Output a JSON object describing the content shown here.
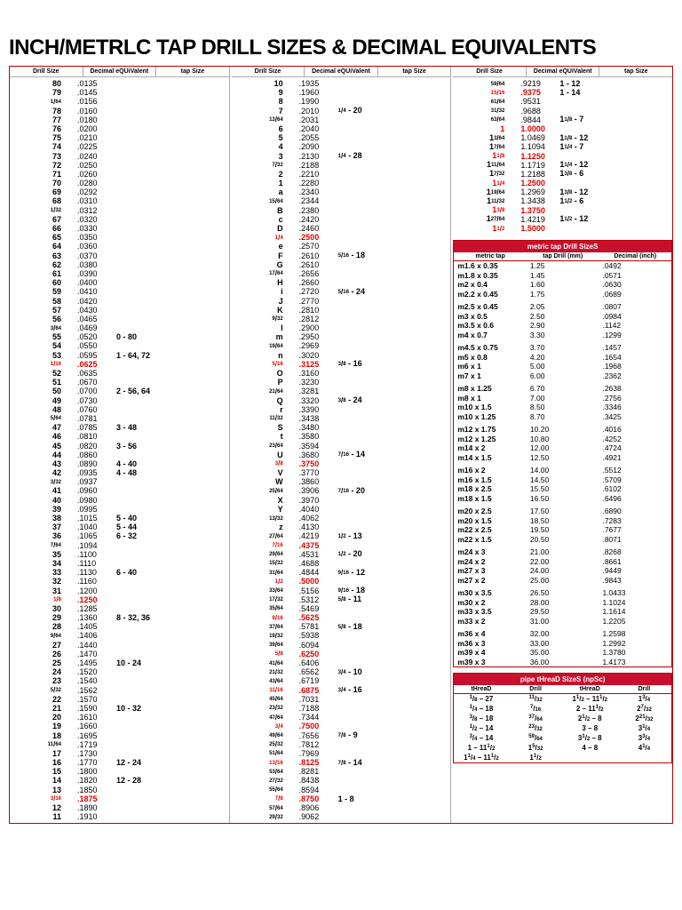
{
  "title": "INCH/METRLC TAP DRILL SIZES & DECIMAL EQUIVALENTS",
  "headers": [
    "Drill Size",
    "Decimal eQUiValent",
    "tap Size"
  ],
  "col1": [
    [
      "80",
      ".0135",
      ""
    ],
    [
      "79",
      ".0145",
      ""
    ],
    [
      "<f>1/64</f>",
      ".0156",
      ""
    ],
    [
      "78",
      ".0160",
      ""
    ],
    [
      "77",
      ".0180",
      ""
    ],
    [
      "76",
      ".0200",
      ""
    ],
    [
      "75",
      ".0210",
      ""
    ],
    [
      "74",
      ".0225",
      ""
    ],
    [
      "73",
      ".0240",
      ""
    ],
    [
      "72",
      ".0250",
      ""
    ],
    [
      "71",
      ".0260",
      ""
    ],
    [
      "70",
      ".0280",
      ""
    ],
    [
      "69",
      ".0292",
      ""
    ],
    [
      "68",
      ".0310",
      ""
    ],
    [
      "<f>1/32</f>",
      ".0312",
      ""
    ],
    [
      "67",
      ".0320",
      ""
    ],
    [
      "66",
      ".0330",
      ""
    ],
    [
      "65",
      ".0350",
      ""
    ],
    [
      "64",
      ".0360",
      ""
    ],
    [
      "63",
      ".0370",
      ""
    ],
    [
      "62",
      ".0380",
      ""
    ],
    [
      "61",
      ".0390",
      ""
    ],
    [
      "60",
      ".0400",
      ""
    ],
    [
      "59",
      ".0410",
      ""
    ],
    [
      "58",
      ".0420",
      ""
    ],
    [
      "57",
      ".0430",
      ""
    ],
    [
      "56",
      ".0465",
      ""
    ],
    [
      "<f>3/64</f>",
      ".0469",
      ""
    ],
    [
      "55",
      ".0520",
      "0 - 80"
    ],
    [
      "54",
      ".0550",
      ""
    ],
    [
      "53",
      ".0595",
      "1 - 64, 72"
    ],
    [
      "<r><f>1/16</f>",
      "<r>.0625",
      ""
    ],
    [
      "52",
      ".0635",
      ""
    ],
    [
      "51",
      ".0670",
      ""
    ],
    [
      "50",
      ".0700",
      "2 - 56, 64"
    ],
    [
      "49",
      ".0730",
      ""
    ],
    [
      "48",
      ".0760",
      ""
    ],
    [
      "<f>5/64</f>",
      ".0781",
      ""
    ],
    [
      "47",
      ".0785",
      "3 - 48"
    ],
    [
      "46",
      ".0810",
      ""
    ],
    [
      "45",
      ".0820",
      "3 - 56"
    ],
    [
      "44",
      ".0860",
      ""
    ],
    [
      "43",
      ".0890",
      "4 - 40"
    ],
    [
      "42",
      ".0935",
      "4 - 48"
    ],
    [
      "<f>3/32</f>",
      ".0937",
      ""
    ],
    [
      "41",
      ".0960",
      ""
    ],
    [
      "40",
      ".0980",
      ""
    ],
    [
      "39",
      ".0995",
      ""
    ],
    [
      "38",
      ".1015",
      "5 - 40"
    ],
    [
      "37",
      ".1040",
      "5 - 44"
    ],
    [
      "36",
      ".1065",
      "6 - 32"
    ],
    [
      "<f>7/64</f>",
      ".1094",
      ""
    ],
    [
      "35",
      ".1100",
      ""
    ],
    [
      "34",
      ".1110",
      ""
    ],
    [
      "33",
      ".1130",
      "6 - 40"
    ],
    [
      "32",
      ".1160",
      ""
    ],
    [
      "31",
      ".1200",
      ""
    ],
    [
      "<r><f>1/8</f>",
      "<r>.1250",
      ""
    ],
    [
      "30",
      ".1285",
      ""
    ],
    [
      "29",
      ".1360",
      "8 - 32, 36"
    ],
    [
      "28",
      ".1405",
      ""
    ],
    [
      "<f>9/64</f>",
      ".1406",
      ""
    ],
    [
      "27",
      ".1440",
      ""
    ],
    [
      "26",
      ".1470",
      ""
    ],
    [
      "25",
      ".1495",
      "10 - 24"
    ],
    [
      "24",
      ".1520",
      ""
    ],
    [
      "23",
      ".1540",
      ""
    ],
    [
      "<f>5/32</f>",
      ".1562",
      ""
    ],
    [
      "22",
      ".1570",
      ""
    ],
    [
      "21",
      ".1590",
      "10 - 32"
    ],
    [
      "20",
      ".1610",
      ""
    ],
    [
      "19",
      ".1660",
      ""
    ],
    [
      "18",
      ".1695",
      ""
    ],
    [
      "<f>11/64</f>",
      ".1719",
      ""
    ],
    [
      "17",
      ".1730",
      ""
    ],
    [
      "16",
      ".1770",
      "12 - 24"
    ],
    [
      "15",
      ".1800",
      ""
    ],
    [
      "14",
      ".1820",
      "12 - 28"
    ],
    [
      "13",
      ".1850",
      ""
    ],
    [
      "<r><f>3/16</f>",
      "<r>.1875",
      ""
    ],
    [
      "12",
      ".1890",
      ""
    ],
    [
      "11",
      ".1910",
      ""
    ]
  ],
  "col2": [
    [
      "10",
      ".1935",
      ""
    ],
    [
      "9",
      ".1960",
      ""
    ],
    [
      "8",
      ".1990",
      ""
    ],
    [
      "7",
      ".2010",
      "<f>1/4</f> - 20"
    ],
    [
      "<f>13/64</f>",
      ".2031",
      ""
    ],
    [
      "6",
      ".2040",
      ""
    ],
    [
      "5",
      ".2055",
      ""
    ],
    [
      "4",
      ".2090",
      ""
    ],
    [
      "3",
      ".2130",
      "<f>1/4</f> - 28"
    ],
    [
      "<f>7/32</f>",
      ".2188",
      ""
    ],
    [
      "2",
      ".2210",
      ""
    ],
    [
      "1",
      ".2280",
      ""
    ],
    [
      "a",
      ".2340",
      ""
    ],
    [
      "<f>15/64</f>",
      ".2344",
      ""
    ],
    [
      "B",
      ".2380",
      ""
    ],
    [
      "c",
      ".2420",
      ""
    ],
    [
      "D",
      ".2460",
      ""
    ],
    [
      "<r><f>1/4</f>",
      "<r>.2500",
      ""
    ],
    [
      "e",
      ".2570",
      ""
    ],
    [
      "F",
      ".2610",
      "<f>5/16</f> - 18"
    ],
    [
      "G",
      ".2610",
      ""
    ],
    [
      "<f>17/64</f>",
      ".2656",
      ""
    ],
    [
      "H",
      ".2660",
      ""
    ],
    [
      "i",
      ".2720",
      "<f>5/16</f> - 24"
    ],
    [
      "J",
      ".2770",
      ""
    ],
    [
      "K",
      ".2810",
      ""
    ],
    [
      "<f>9/32</f>",
      ".2812",
      ""
    ],
    [
      "l",
      ".2900",
      ""
    ],
    [
      "m",
      ".2950",
      ""
    ],
    [
      "<f>19/64</f>",
      ".2969",
      ""
    ],
    [
      "n",
      ".3020",
      ""
    ],
    [
      "<r><f>5/16</f>",
      "<r>.3125",
      "<f>3/8</f> - 16"
    ],
    [
      "O",
      ".3160",
      ""
    ],
    [
      "P",
      ".3230",
      ""
    ],
    [
      "<f>21/64</f>",
      ".3281",
      ""
    ],
    [
      "Q",
      ".3320",
      "<f>3/8</f> - 24"
    ],
    [
      "r",
      ".3390",
      ""
    ],
    [
      "<f>11/32</f>",
      ".3438",
      ""
    ],
    [
      "S",
      ".3480",
      ""
    ],
    [
      "t",
      ".3580",
      ""
    ],
    [
      "<f>23/64</f>",
      ".3594",
      ""
    ],
    [
      "U",
      ".3680",
      "<f>7/16</f> - 14"
    ],
    [
      "<r><f>3/8</f>",
      "<r>.3750",
      ""
    ],
    [
      "V",
      ".3770",
      ""
    ],
    [
      "W",
      ".3860",
      ""
    ],
    [
      "<f>25/64</f>",
      ".3906",
      "<f>7/16</f> - 20"
    ],
    [
      "X",
      ".3970",
      ""
    ],
    [
      "Y",
      ".4040",
      ""
    ],
    [
      "<f>13/32</f>",
      ".4062",
      ""
    ],
    [
      "z",
      ".4130",
      ""
    ],
    [
      "<f>27/64</f>",
      ".4219",
      "<f>1/2</f> - 13"
    ],
    [
      "<r><f>7/16</f>",
      "<r>.4375",
      ""
    ],
    [
      "<f>29/64</f>",
      ".4531",
      "<f>1/2</f> - 20"
    ],
    [
      "<f>15/32</f>",
      ".4688",
      ""
    ],
    [
      "<f>31/64</f>",
      ".4844",
      "<f>9/16</f> - 12"
    ],
    [
      "<r><f>1/2</f>",
      "<r>.5000",
      ""
    ],
    [
      "<f>33/64</f>",
      ".5156",
      "<f>9/16</f> - 18"
    ],
    [
      "<f>17/32</f>",
      ".5312",
      "<f>5/8</f> - 11"
    ],
    [
      "<f>35/64</f>",
      ".5469",
      ""
    ],
    [
      "<r><f>9/16</f>",
      "<r>.5625",
      ""
    ],
    [
      "<f>37/64</f>",
      ".5781",
      "<f>5/8</f> - 18"
    ],
    [
      "<f>19/32</f>",
      ".5938",
      ""
    ],
    [
      "<f>39/64</f>",
      ".6094",
      ""
    ],
    [
      "<r><f>5/8</f>",
      "<r>.6250",
      ""
    ],
    [
      "<f>41/64</f>",
      ".6406",
      ""
    ],
    [
      "<f>21/32</f>",
      ".6562",
      "<f>3/4</f> - 10"
    ],
    [
      "<f>43/64</f>",
      ".6719",
      ""
    ],
    [
      "<r><f>11/16</f>",
      "<r>.6875",
      "<f>3/4</f> - 16"
    ],
    [
      "<f>45/64</f>",
      ".7031",
      ""
    ],
    [
      "<f>23/32</f>",
      ".7188",
      ""
    ],
    [
      "<f>47/64</f>",
      ".7344",
      ""
    ],
    [
      "<r><f>3/4</f>",
      "<r>.7500",
      ""
    ],
    [
      "<f>49/64</f>",
      ".7656",
      "<f>7/8</f> - 9"
    ],
    [
      "<f>25/32</f>",
      ".7812",
      ""
    ],
    [
      "<f>51/64</f>",
      ".7969",
      ""
    ],
    [
      "<r><f>13/16</f>",
      "<r>.8125",
      "<f>7/8</f> - 14"
    ],
    [
      "<f>53/64</f>",
      ".8281",
      ""
    ],
    [
      "<f>27/32</f>",
      ".8438",
      ""
    ],
    [
      "<f>55/64</f>",
      ".8594",
      ""
    ],
    [
      "<r><f>7/8</f>",
      "<r>.8750",
      "1 - 8"
    ],
    [
      "<f>57/64</f>",
      ".8906",
      ""
    ],
    [
      "<f>29/32</f>",
      ".9062",
      ""
    ]
  ],
  "col3": [
    [
      "<f>59/64</f>",
      ".9219",
      "1 - 12"
    ],
    [
      "<r><f>15/16</f>",
      "<r>.9375",
      "1 - 14"
    ],
    [
      "<f>61/64</f>",
      ".9531",
      ""
    ],
    [
      "<f>31/32</f>",
      ".9688",
      ""
    ],
    [
      "<f>63/64</f>",
      ".9844",
      "1<f>1/8</f> - 7"
    ],
    [
      "<r>1",
      "<r>1.0000",
      ""
    ],
    [
      "1<f>3/64</f>",
      "1.0469",
      "1<f>1/8</f> - 12"
    ],
    [
      "1<f>7/64</f>",
      "1.1094",
      "1<f>1/4</f> - 7"
    ],
    [
      "<r>1<f>1/8</f>",
      "<r>1.1250",
      ""
    ],
    [
      "1<f>11/64</f>",
      "1.1719",
      "1<f>1/4</f> - 12"
    ],
    [
      "1<f>7/32</f>",
      "1.2188",
      "1<f>3/8</f> - 6"
    ],
    [
      "<r>1<f>1/4</f>",
      "<r>1.2500",
      ""
    ],
    [
      "1<f>19/64</f>",
      "1.2969",
      "1<f>3/8</f> - 12"
    ],
    [
      "1<f>11/32</f>",
      "1.3438",
      "1<f>1/2</f> - 6"
    ],
    [
      "<r>1<f>3/8</f>",
      "<r>1.3750",
      ""
    ],
    [
      "1<f>27/64</f>",
      "1.4219",
      "1<f>1/2</f> - 12"
    ],
    [
      "<r>1<f>1/2</f>",
      "<r>1.5000",
      ""
    ]
  ],
  "metric": {
    "title": "metric tap Drill SizeS",
    "headers": [
      "metric tap",
      "tap Drill (mm)",
      "Decimal (inch)"
    ],
    "rows": [
      [
        "m1.6 x 0.35",
        "1.25",
        ".0492"
      ],
      [
        "m1.8 x 0.35",
        "1.45",
        ".0571"
      ],
      [
        "m2 x 0.4",
        "1.60",
        ".0630"
      ],
      [
        "m2.2 x 0.45",
        "1.75",
        ".0689"
      ],
      [],
      [
        "m2.5 x 0.45",
        "2.05",
        ".0807"
      ],
      [
        "m3 x 0.5",
        "2.50",
        ".0984"
      ],
      [
        "m3.5 x 0.6",
        "2.90",
        ".1142"
      ],
      [
        "m4 x 0.7",
        "3.30",
        ".1299"
      ],
      [],
      [
        "m4.5 x 0.75",
        "3.70",
        ".1457"
      ],
      [
        "m5 x 0.8",
        "4.20",
        ".1654"
      ],
      [
        "m6 x 1",
        "5.00",
        ".1968"
      ],
      [
        "m7 x 1",
        "6.00",
        ".2362"
      ],
      [],
      [
        "m8 x 1.25",
        "6.70",
        ".2638"
      ],
      [
        "m8 x 1",
        "7.00",
        ".2756"
      ],
      [
        "m10 x 1.5",
        "8.50",
        ".3346"
      ],
      [
        "m10 x 1.25",
        "8.70",
        ".3425"
      ],
      [],
      [
        "m12 x 1.75",
        "10.20",
        ".4016"
      ],
      [
        "m12 x 1.25",
        "10.80",
        ".4252"
      ],
      [
        "m14 x 2",
        "12.00",
        ".4724"
      ],
      [
        "m14 x 1.5",
        "12.50",
        ".4921"
      ],
      [],
      [
        "m16 x 2",
        "14.00",
        ".5512"
      ],
      [
        "m16 x 1.5",
        "14.50",
        ".5709"
      ],
      [
        "m18 x 2.5",
        "15.50",
        ".6102"
      ],
      [
        "m18 x 1.5",
        "16.50",
        ".6496"
      ],
      [],
      [
        "m20 x 2.5",
        "17.50",
        ".6890"
      ],
      [
        "m20 x 1.5",
        "18.50",
        ".7283"
      ],
      [
        "m22 x 2.5",
        "19.50",
        ".7677"
      ],
      [
        "m22 x 1.5",
        "20.50",
        ".8071"
      ],
      [],
      [
        "m24 x 3",
        "21.00",
        ".8268"
      ],
      [
        "m24 x 2",
        "22.00",
        ".8661"
      ],
      [
        "m27 x 3",
        "24.00",
        ".9449"
      ],
      [
        "m27 x 2",
        "25.00",
        ".9843"
      ],
      [],
      [
        "m30 x 3.5",
        "26.50",
        "1.0433"
      ],
      [
        "m30 x 2",
        "28.00",
        "1.1024"
      ],
      [
        "m33 x 3.5",
        "29.50",
        "1.1614"
      ],
      [
        "m33 x 2",
        "31.00",
        "1.2205"
      ],
      [],
      [
        "m36 x 4",
        "32.00",
        "1.2598"
      ],
      [
        "m36 x 3",
        "33.00",
        "1.2992"
      ],
      [
        "m39 x 4",
        "35.00",
        "1.3780"
      ],
      [
        "m39 x 3",
        "36.00",
        "1.4173"
      ]
    ]
  },
  "pipe": {
    "title": "pipe tHreaD SizeS (npSc)",
    "headers": [
      "tHreaD",
      "Drill",
      "tHreaD",
      "Drill"
    ],
    "rows": [
      [
        "<f>1/8</f> – 27",
        "<f>11/32</f>",
        "1<f>1/2</f> – 11<f>1/2</f>",
        "1<f>3/4</f>"
      ],
      [
        "<f>1/4</f> – 18",
        "<f>7/16</f>",
        "2 – 11<f>1/2</f>",
        "2<f>7/32</f>"
      ],
      [
        "<f>3/8</f> – 18",
        "<f>37/64</f>",
        "2<f>1/2</f> – 8",
        "2<f>21/32</f>"
      ],
      [
        "<f>1/2</f> – 14",
        "<f>23/32</f>",
        "3 – 8",
        "3<f>1/4</f>"
      ],
      [
        "<f>3/4</f> – 14",
        "<f>59/64</f>",
        "3<f>1/2</f> – 8",
        "3<f>3/4</f>"
      ],
      [
        "1 – 11<f>1/2</f>",
        "1<f>5/32</f>",
        "4 – 8",
        "4<f>1/4</f>"
      ],
      [
        "1<f>1/4</f> – 11<f>1/2</f>",
        "1<f>1/2</f>",
        "",
        ""
      ]
    ]
  }
}
